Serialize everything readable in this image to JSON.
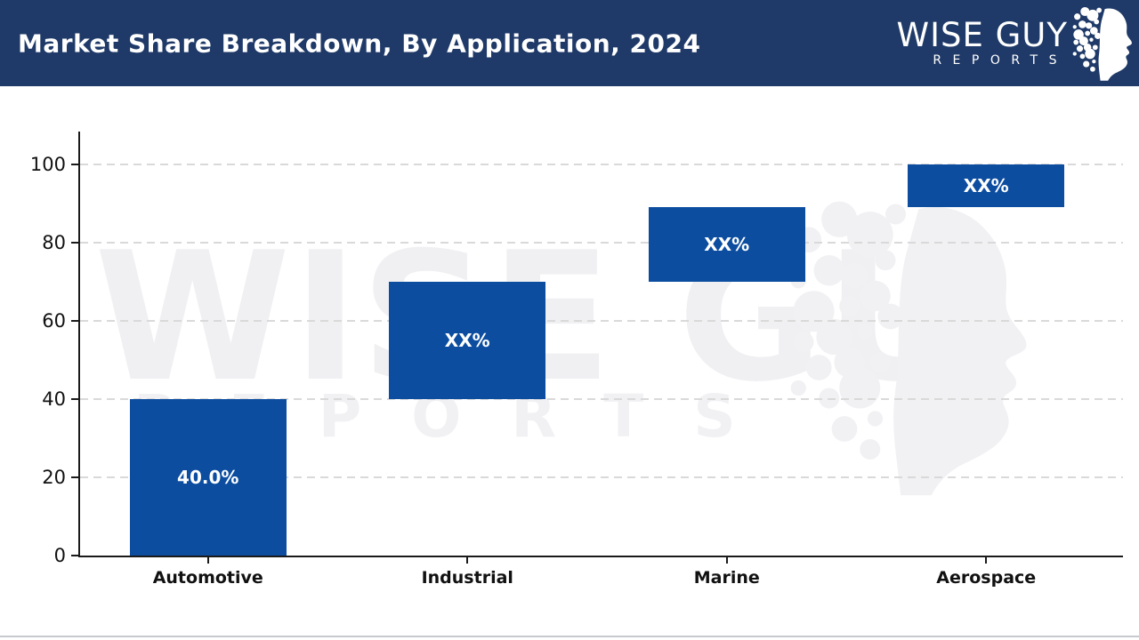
{
  "header": {
    "title": "Market Share Breakdown, By Application, 2024",
    "logo": {
      "line1": "WISE GUY",
      "line2": "REPORTS",
      "face_icon": "wise-guy-head-icon"
    }
  },
  "watermark": {
    "line1": "WISE GU",
    "line2": "REPORTS"
  },
  "chart_data": {
    "type": "bar",
    "subtype": "floating-segment-waterfall",
    "title": "Market Share Breakdown, By Application, 2024",
    "categories": [
      "Automotive",
      "Industrial",
      "Marine",
      "Aerospace"
    ],
    "segments": [
      {
        "category": "Automotive",
        "start": 0,
        "end": 40,
        "label": "40.0%"
      },
      {
        "category": "Industrial",
        "start": 40,
        "end": 70,
        "label": "XX%"
      },
      {
        "category": "Marine",
        "start": 70,
        "end": 89,
        "label": "XX%"
      },
      {
        "category": "Aerospace",
        "start": 89,
        "end": 100,
        "label": "XX%"
      }
    ],
    "yticks": [
      0,
      20,
      40,
      60,
      80,
      100
    ],
    "ylim": [
      0,
      105
    ],
    "xlabel": "",
    "ylabel": "",
    "grid": "horizontal-dashed",
    "legend": "none",
    "colors": {
      "bar": "#0c4da0",
      "bar_label": "#ffffff",
      "axis": "#1a1a1a",
      "gridline": "#d9d9d9",
      "header_bg": "#1f3a68",
      "watermark": "#f0f0f3"
    }
  }
}
